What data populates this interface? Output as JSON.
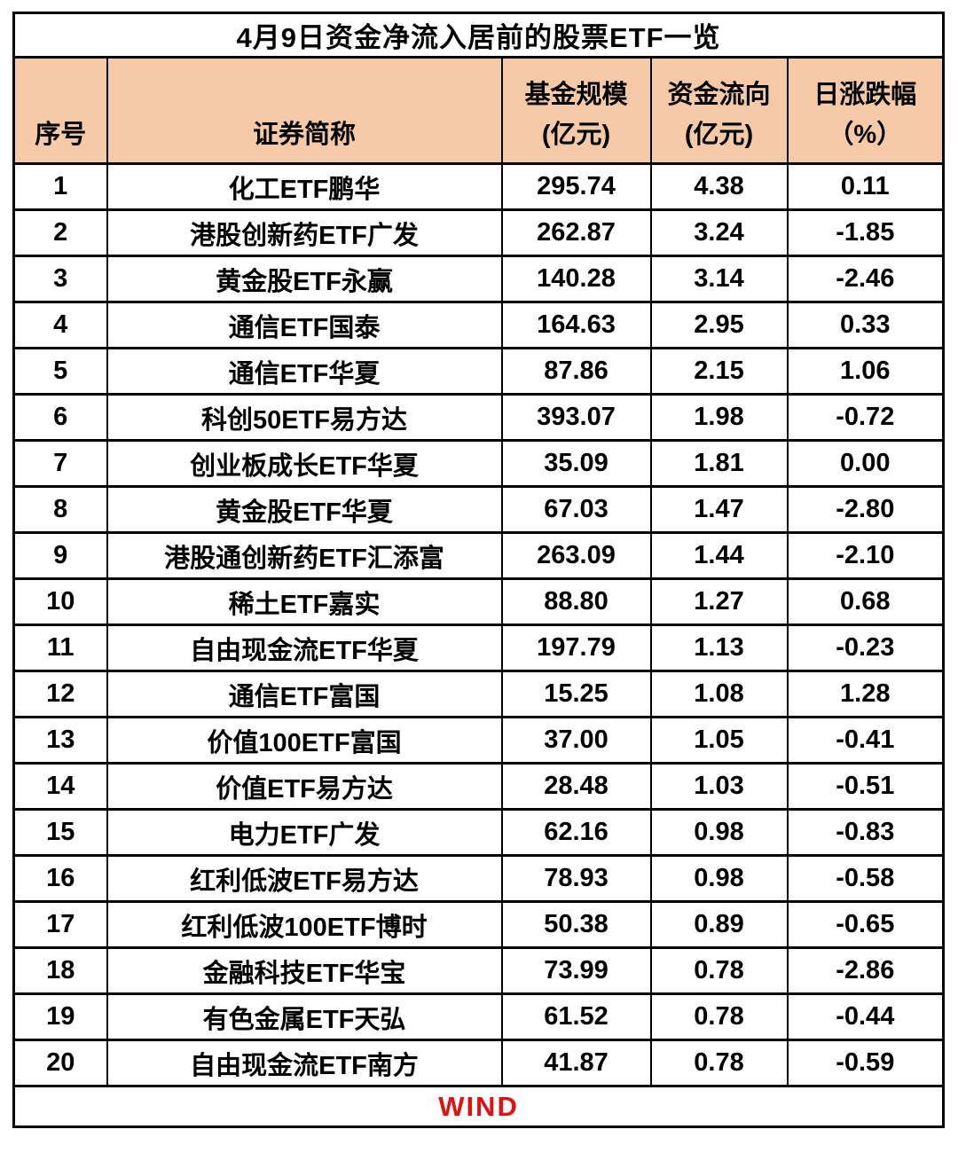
{
  "chart_data": {
    "type": "table",
    "title": "4月9日资金净流入居前的股票ETF一览",
    "columns": [
      {
        "label": "序号",
        "sub": ""
      },
      {
        "label": "证券简称",
        "sub": ""
      },
      {
        "label": "基金规模",
        "sub": "(亿元)"
      },
      {
        "label": "资金流向",
        "sub": "(亿元)"
      },
      {
        "label": "日涨跌幅",
        "sub": "（%）"
      }
    ],
    "rows": [
      [
        "1",
        "化工ETF鹏华",
        "295.74",
        "4.38",
        "0.11"
      ],
      [
        "2",
        "港股创新药ETF广发",
        "262.87",
        "3.24",
        "-1.85"
      ],
      [
        "3",
        "黄金股ETF永赢",
        "140.28",
        "3.14",
        "-2.46"
      ],
      [
        "4",
        "通信ETF国泰",
        "164.63",
        "2.95",
        "0.33"
      ],
      [
        "5",
        "通信ETF华夏",
        "87.86",
        "2.15",
        "1.06"
      ],
      [
        "6",
        "科创50ETF易方达",
        "393.07",
        "1.98",
        "-0.72"
      ],
      [
        "7",
        "创业板成长ETF华夏",
        "35.09",
        "1.81",
        "0.00"
      ],
      [
        "8",
        "黄金股ETF华夏",
        "67.03",
        "1.47",
        "-2.80"
      ],
      [
        "9",
        "港股通创新药ETF汇添富",
        "263.09",
        "1.44",
        "-2.10"
      ],
      [
        "10",
        "稀土ETF嘉实",
        "88.80",
        "1.27",
        "0.68"
      ],
      [
        "11",
        "自由现金流ETF华夏",
        "197.79",
        "1.13",
        "-0.23"
      ],
      [
        "12",
        "通信ETF富国",
        "15.25",
        "1.08",
        "1.28"
      ],
      [
        "13",
        "价值100ETF富国",
        "37.00",
        "1.05",
        "-0.41"
      ],
      [
        "14",
        "价值ETF易方达",
        "28.48",
        "1.03",
        "-0.51"
      ],
      [
        "15",
        "电力ETF广发",
        "62.16",
        "0.98",
        "-0.83"
      ],
      [
        "16",
        "红利低波ETF易方达",
        "78.93",
        "0.98",
        "-0.58"
      ],
      [
        "17",
        "红利低波100ETF博时",
        "50.38",
        "0.89",
        "-0.65"
      ],
      [
        "18",
        "金融科技ETF华宝",
        "73.99",
        "0.78",
        "-2.86"
      ],
      [
        "19",
        "有色金属ETF天弘",
        "61.52",
        "0.78",
        "-0.44"
      ],
      [
        "20",
        "自由现金流ETF南方",
        "41.87",
        "0.78",
        "-0.59"
      ]
    ]
  },
  "footer": {
    "source_label": "WIND"
  },
  "colors": {
    "header_bg": "#f6caa6",
    "border": "#000000",
    "source_red": "#e01111"
  }
}
